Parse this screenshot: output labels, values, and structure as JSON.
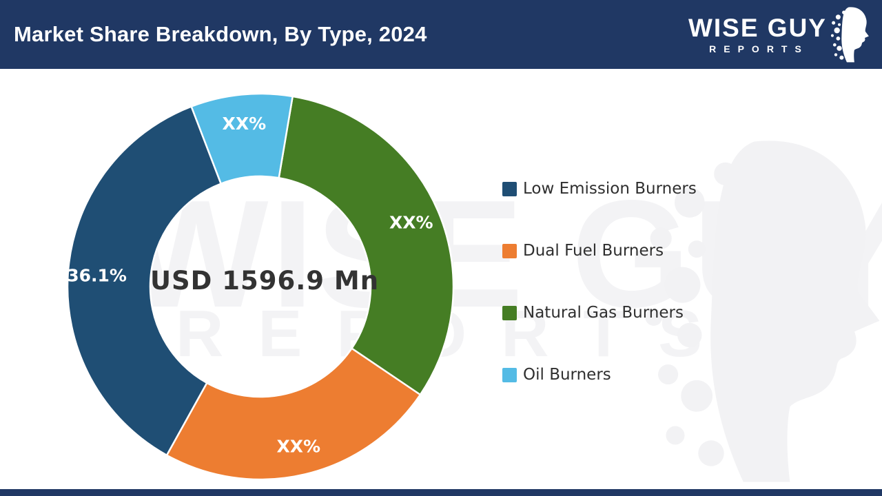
{
  "header": {
    "title": "Market Share Breakdown, By Type, 2024",
    "bg_color": "#203864",
    "logo": {
      "line1": "WISE GUY",
      "line2": "REPORTS"
    }
  },
  "watermark": {
    "line1": "WISE GUY",
    "line2": "REPORTS"
  },
  "footer": {
    "bg_color": "#203864"
  },
  "chart_data": {
    "type": "pie",
    "subtype": "donut",
    "title": "Market Share Breakdown, By Type, 2024",
    "center_text": "USD 1596.9 Mn",
    "start_angle_deg": -21,
    "direction": "counterclockwise",
    "legend_position": "right",
    "gap_color": "#ffffff",
    "label_color": "#ffffff",
    "center_text_color": "#333333",
    "series": [
      {
        "name": "Low Emission Burners",
        "value_pct": 36.1,
        "label": "36.1%",
        "color": "#1f4e74"
      },
      {
        "name": "Dual Fuel Burners",
        "value_pct": 23.6,
        "label": "XX%",
        "color": "#ed7d31"
      },
      {
        "name": "Natural Gas Burners",
        "value_pct": 31.8,
        "label": "XX%",
        "color": "#457d24"
      },
      {
        "name": "Oil Burners",
        "value_pct": 8.5,
        "label": "XX%",
        "color": "#54bbe5"
      }
    ]
  }
}
